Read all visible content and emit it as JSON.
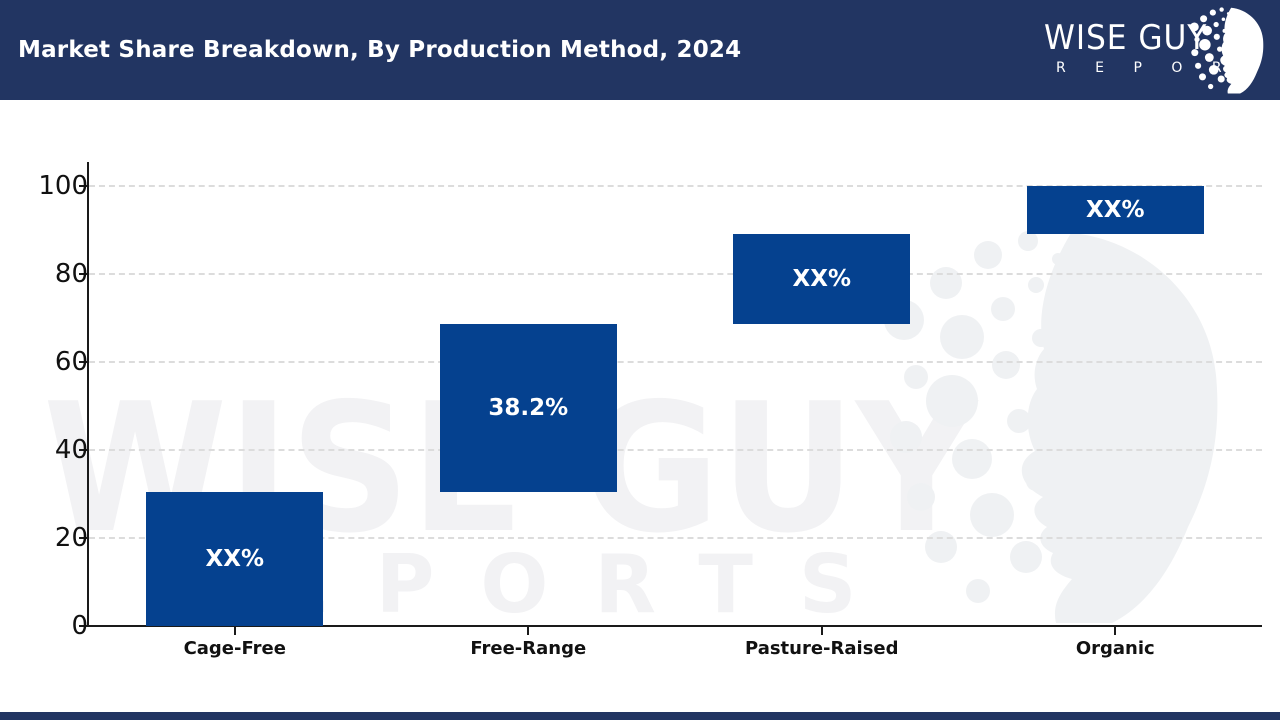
{
  "header": {
    "title": "Market Share Breakdown, By Production Method, 2024",
    "logo": {
      "line1": "WISE GUY",
      "line2": "REPORTS"
    }
  },
  "watermark": {
    "line1": "WISE GUY",
    "line2": "REPORTS"
  },
  "footer": {},
  "chart_data": {
    "type": "bar",
    "subtype": "floating-waterfall",
    "title": "Market Share Breakdown, By Production Method, 2024",
    "xlabel": "",
    "ylabel": "",
    "categories": [
      "Cage-Free",
      "Free-Range",
      "Pasture-Raised",
      "Organic"
    ],
    "segments": [
      {
        "category": "Cage-Free",
        "start": 0,
        "end": 30.5,
        "label": "XX%"
      },
      {
        "category": "Free-Range",
        "start": 30.5,
        "end": 68.7,
        "label": "38.2%"
      },
      {
        "category": "Pasture-Raised",
        "start": 68.7,
        "end": 89.2,
        "label": "XX%"
      },
      {
        "category": "Organic",
        "start": 89.2,
        "end": 100,
        "label": "XX%"
      }
    ],
    "yticks": [
      0,
      20,
      40,
      60,
      80,
      100
    ],
    "ylim": [
      0,
      105.5
    ],
    "grid": "horizontal-dashed",
    "legend": "none"
  },
  "colors": {
    "header_bg": "#223562",
    "footer_bg": "#223562",
    "bar": "#05418f",
    "bar_label": "#ffffff",
    "grid": "#dcdcdc",
    "axis": "#1a1a1a",
    "watermark": "#f1f2f4"
  }
}
